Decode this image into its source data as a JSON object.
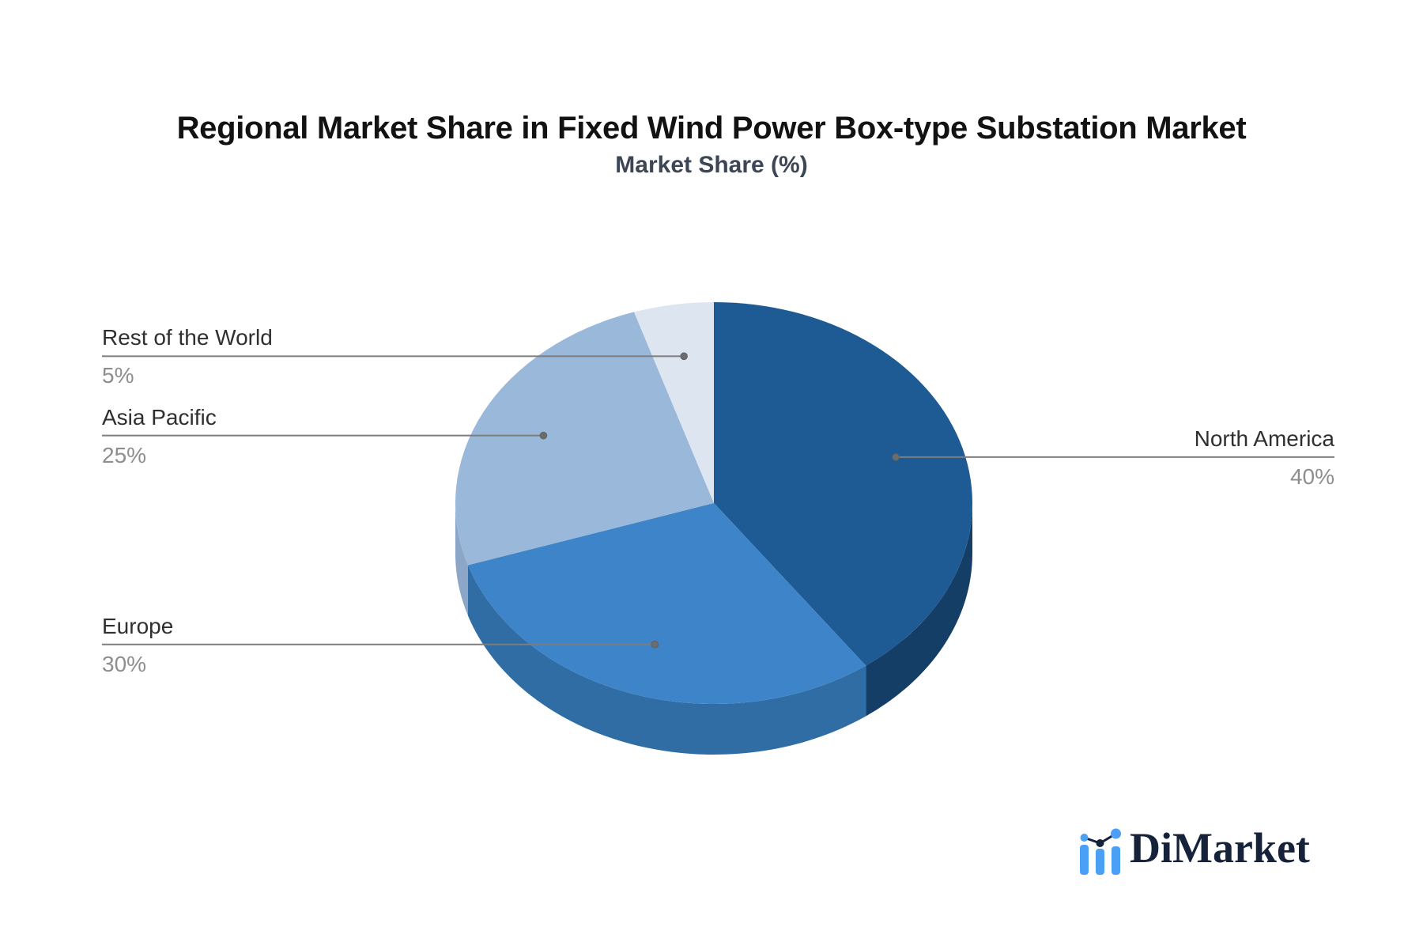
{
  "chart_data": {
    "type": "pie",
    "style": "3d",
    "title": "Regional Market Share in Fixed Wind Power Box-type Substation Market",
    "subtitle": "Market Share (%)",
    "unit": "%",
    "start_angle_deg": 0,
    "direction": "clockwise",
    "legend_position": "callout-labels",
    "slices": [
      {
        "label": "North America",
        "value": 40,
        "color": "#1e5b94",
        "side_color": "#153e66",
        "callout_side": "right"
      },
      {
        "label": "Europe",
        "value": 30,
        "color": "#3d85c8",
        "side_color": "#2f6da4",
        "callout_side": "left"
      },
      {
        "label": "Asia Pacific",
        "value": 25,
        "color": "#9ab8da",
        "side_color": "#8ba6c7",
        "callout_side": "left"
      },
      {
        "label": "Rest of the World",
        "value": 5,
        "color": "#dde5f1",
        "side_color": "#c9d5e6",
        "callout_side": "left"
      }
    ],
    "callout": {
      "line_color": "#7d7d7d",
      "dot_color": "#6d6d6d",
      "label_color": "#2f2f2f",
      "value_color": "#8e8e8e"
    }
  },
  "colors": {
    "background": "#ffffff",
    "title": "#121212",
    "subtitle": "#3d4654"
  },
  "logo": {
    "text": "DiMarket",
    "icon": "bar-chart-trend-icon",
    "text_color": "#16213a",
    "icon_color": "#4aa0f5",
    "icon_dark_color": "#16213a"
  }
}
